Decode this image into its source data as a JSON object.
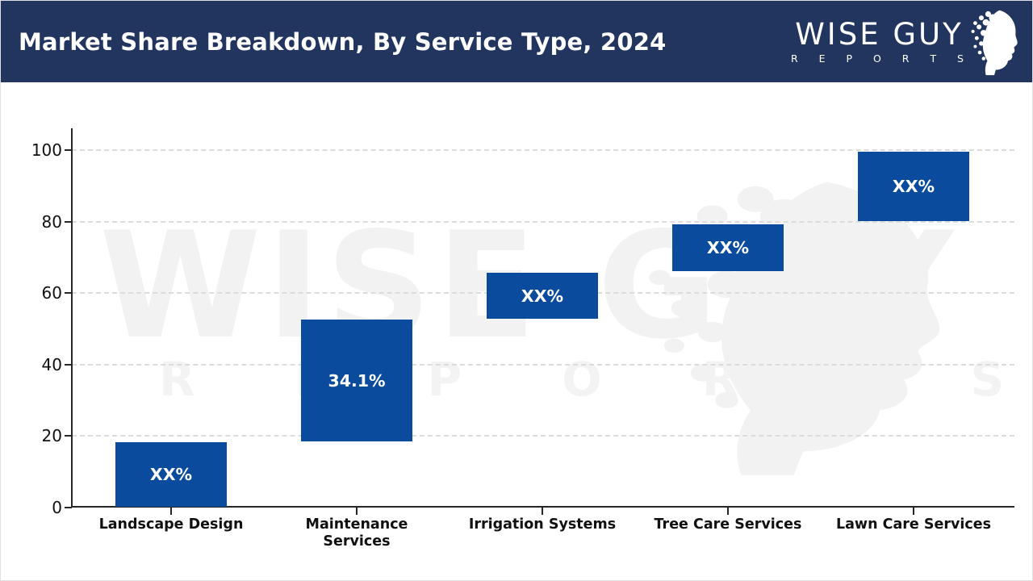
{
  "header": {
    "title": "Market Share Breakdown, By Service Type, 2024",
    "bg_color": "#22355e",
    "logo": {
      "line1": "WISE GUY",
      "line2": "R E P O R T S"
    }
  },
  "watermark": {
    "line1": "WISE GUY",
    "line2": "R E P O R T S"
  },
  "chart_data": {
    "type": "bar",
    "variant": "waterfall",
    "title": "Market Share Breakdown, By Service Type, 2024",
    "categories": [
      "Landscape Design",
      "Maintenance Services",
      "Irrigation Systems",
      "Tree Care Services",
      "Lawn Care Services"
    ],
    "category_lines": [
      [
        "Landscape Design"
      ],
      [
        "Maintenance",
        "Services"
      ],
      [
        "Irrigation Systems"
      ],
      [
        "Tree Care Services"
      ],
      [
        "Lawn Care Services"
      ]
    ],
    "segments": [
      {
        "category": "Landscape Design",
        "start": 0,
        "end": 18.2,
        "label": "XX%"
      },
      {
        "category": "Maintenance Services",
        "start": 18.4,
        "end": 52.5,
        "label": "34.1%"
      },
      {
        "category": "Irrigation Systems",
        "start": 52.7,
        "end": 65.6,
        "label": "XX%"
      },
      {
        "category": "Tree Care Services",
        "start": 66.0,
        "end": 79.3,
        "label": "XX%"
      },
      {
        "category": "Lawn Care Services",
        "start": 80.0,
        "end": 99.5,
        "label": "XX%"
      }
    ],
    "xlabel": "",
    "ylabel": "",
    "yticks": [
      0,
      20,
      40,
      60,
      80,
      100
    ],
    "ylim": [
      0,
      105
    ],
    "grid": {
      "axis": "y",
      "style": "dashed",
      "color": "#dcdcdc"
    },
    "legend": null,
    "bar_color": "#0a4b9d",
    "bar_label_color": "#ffffff",
    "axis_color": "#262626"
  }
}
